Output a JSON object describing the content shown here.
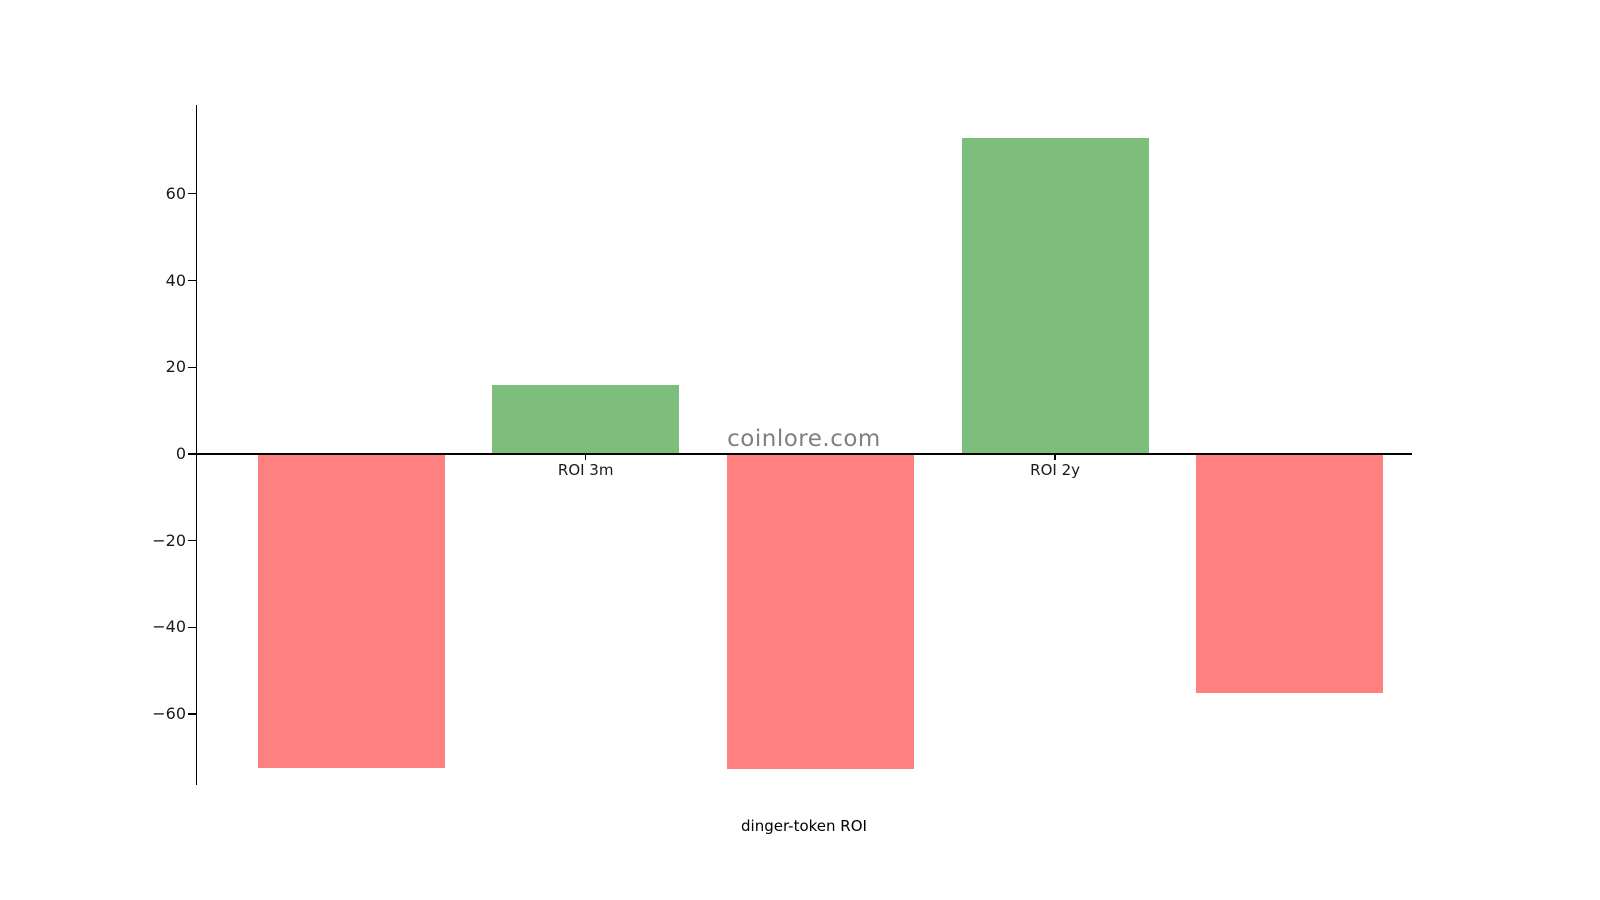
{
  "page": {
    "background": "#ffffff"
  },
  "chart_data": {
    "type": "bar",
    "title": "",
    "xlabel": "dinger-token ROI",
    "ylabel": "",
    "watermark": "coinlore.com",
    "categories": [
      "",
      "ROI 3m",
      "",
      "ROI 2y",
      ""
    ],
    "values": [
      -72.5,
      16.0,
      -72.6,
      72.8,
      -55.1
    ],
    "yticks": [
      {
        "value": 60,
        "label": "60"
      },
      {
        "value": 40,
        "label": "40"
      },
      {
        "value": 20,
        "label": "20"
      },
      {
        "value": 0,
        "label": "0"
      },
      {
        "value": -20,
        "label": "−20"
      },
      {
        "value": -40,
        "label": "−40"
      },
      {
        "value": -60,
        "label": "−60"
      }
    ],
    "ylim": [
      -76.4,
      80.5
    ],
    "grid": false,
    "legend_position": "none",
    "colors": {
      "positive": "#7dbe7d",
      "negative": "#ff8080",
      "axis": "#000000",
      "tick_label": "#1a1a1a",
      "watermark": "#808080"
    }
  }
}
